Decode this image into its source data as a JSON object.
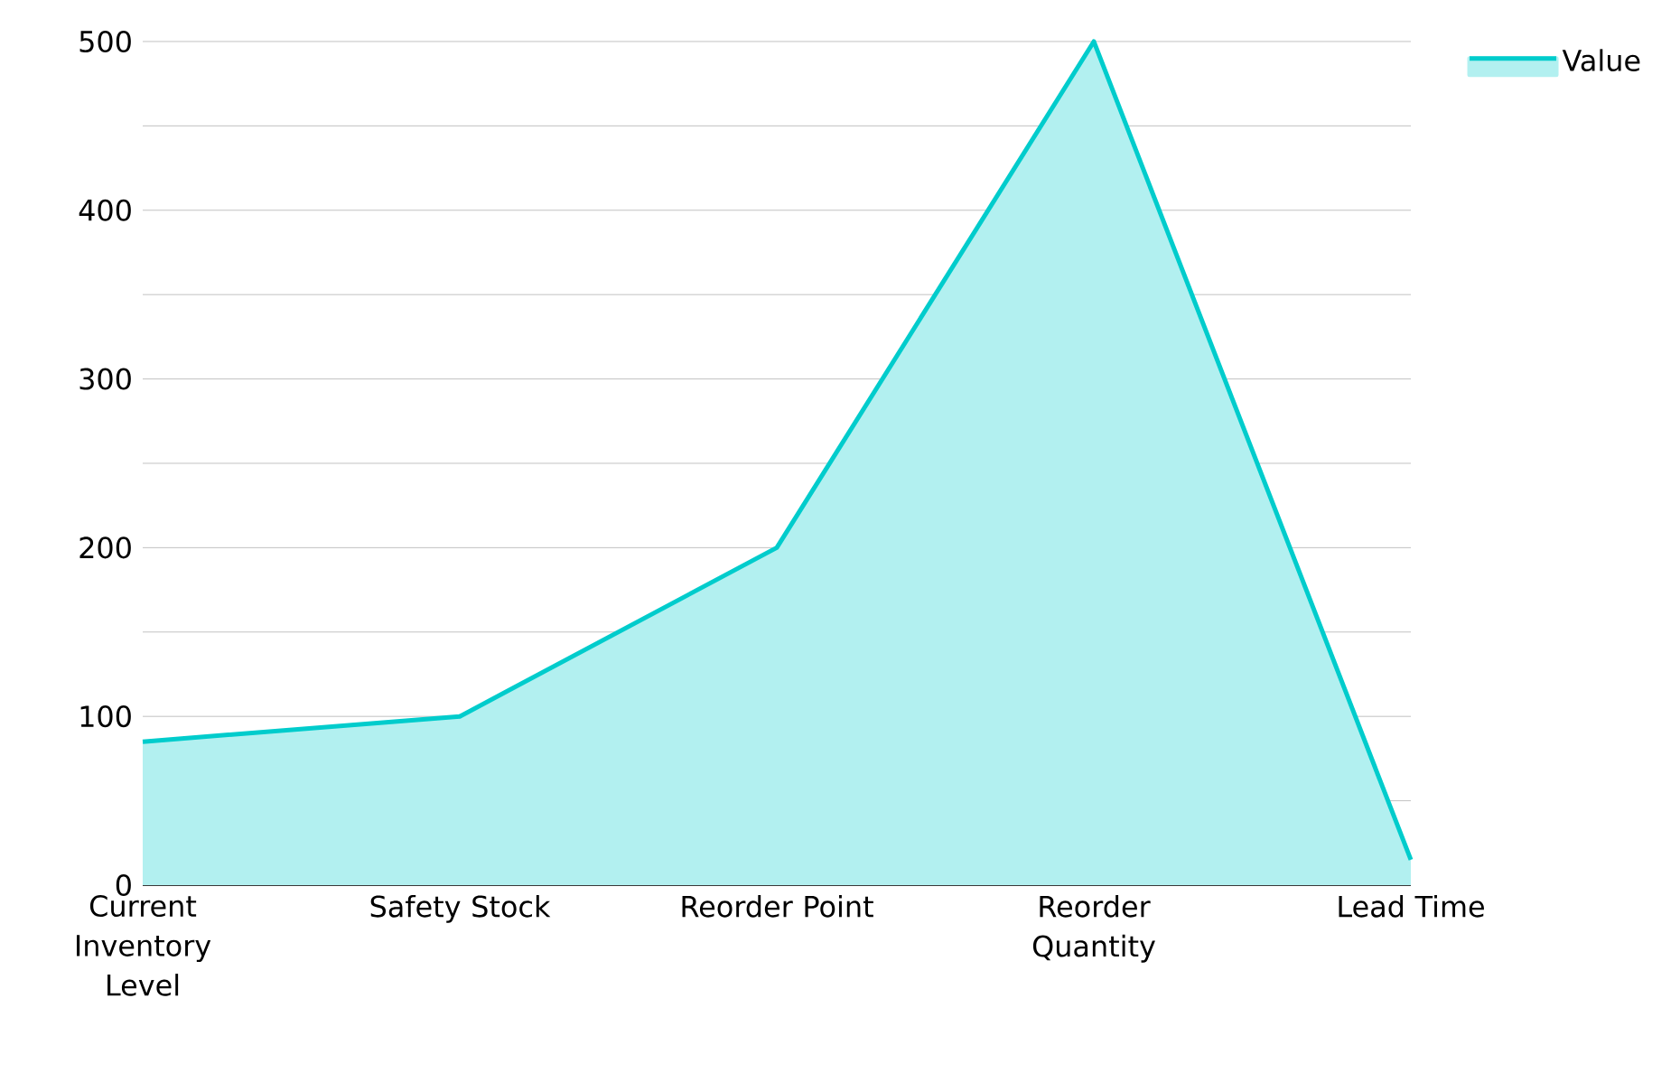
{
  "chart_data": {
    "type": "area",
    "categories": [
      "Current Inventory Level",
      "Safety Stock",
      "Reorder Point",
      "Reorder Quantity",
      "Lead Time"
    ],
    "series": [
      {
        "name": "Value",
        "color": "#00cccc",
        "values": [
          85,
          100,
          200,
          500,
          15
        ]
      }
    ],
    "ylim": [
      0,
      500
    ],
    "yticks": [
      0,
      {
        "value": 50,
        "label": null
      },
      100,
      {
        "value": 150,
        "label": null
      },
      200,
      {
        "value": 250,
        "label": null
      },
      300,
      {
        "value": 350,
        "label": null
      },
      400,
      {
        "value": 450,
        "label": null
      },
      500
    ],
    "grid": "y",
    "legend": "top right"
  }
}
